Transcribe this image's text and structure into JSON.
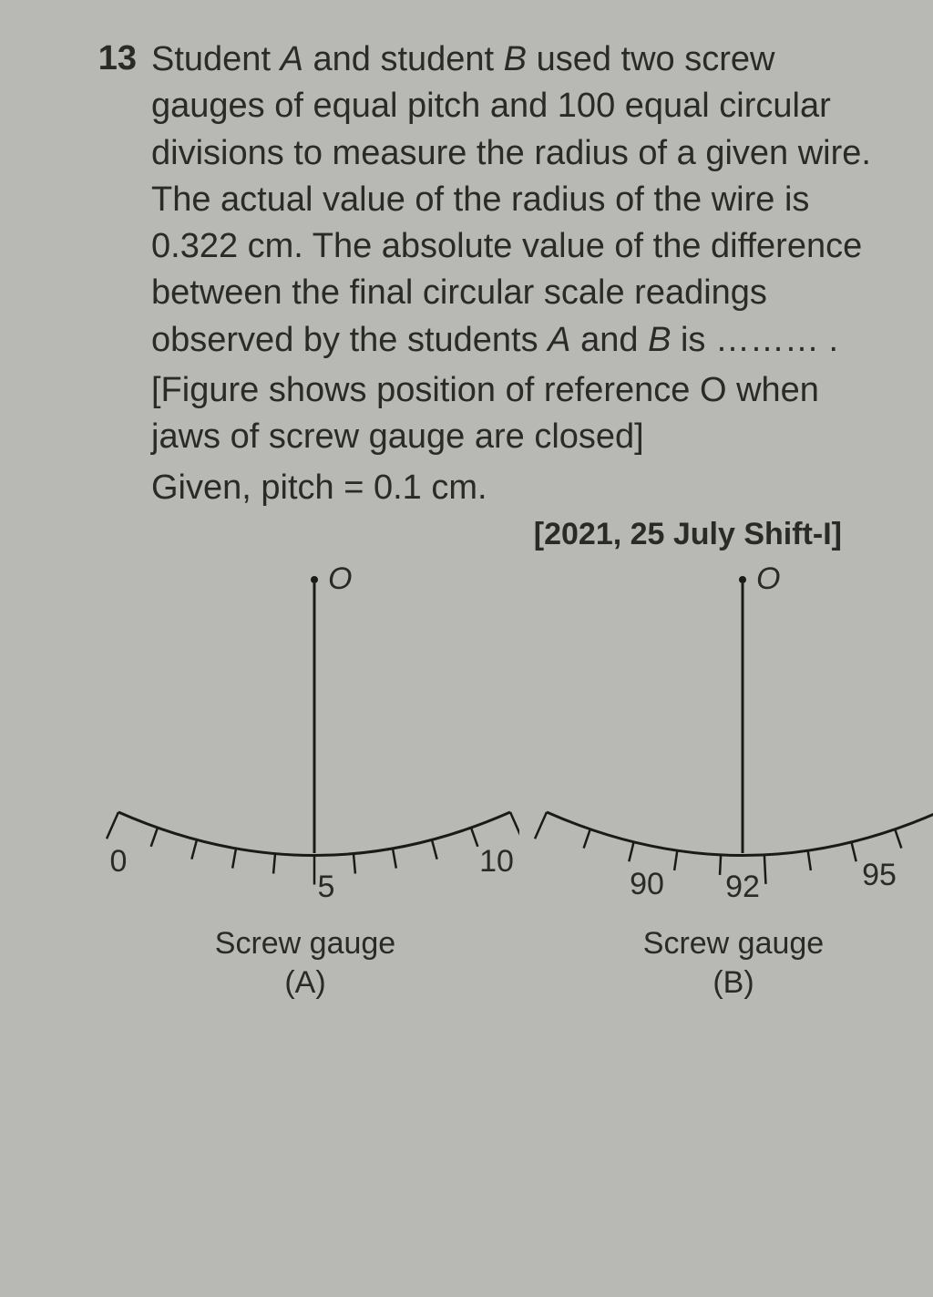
{
  "question": {
    "number": "13",
    "text_parts": {
      "p1": "Student ",
      "varA": "A",
      "p2": " and student ",
      "varB": "B",
      "p3": " used two screw gauges of equal pitch and 100 equal circular divisions to measure the radius of a given wire. The actual value of the radius of the wire is 0.322 cm. The absolute value of the difference between the final circular scale readings observed by the students ",
      "varA2": "A",
      "p4": " and ",
      "varB2": "B",
      "p5": " is ……… ."
    },
    "figure_note": "[Figure shows position of reference O when jaws of screw gauge are closed]",
    "given": "Given, pitch = 0.1 cm.",
    "examref": "[2021, 25 July Shift-I]"
  },
  "gaugeA": {
    "ref_label": "O",
    "ticks": {
      "left": "0",
      "center": "5",
      "right": "10"
    },
    "pointer_at": 5,
    "range": [
      0,
      10
    ],
    "caption": "Screw gauge",
    "sub": "(A)",
    "colors": {
      "stroke": "#1a1a18",
      "text": "#2a2a28"
    }
  },
  "gaugeB": {
    "ref_label": "O",
    "ticks": {
      "left": "90",
      "center": "92",
      "right": "95"
    },
    "pointer_at": 92,
    "range": [
      88,
      97
    ],
    "caption": "Screw gauge",
    "sub": "(B)",
    "colors": {
      "stroke": "#1a1a18",
      "text": "#2a2a28"
    }
  },
  "style": {
    "background": "#b8b8b4",
    "text_color": "#2a2a28",
    "font_size_body": 38,
    "font_size_examref": 34,
    "stroke_width_arc": 3,
    "stroke_width_tick": 2.5,
    "stroke_width_pointer": 3
  }
}
